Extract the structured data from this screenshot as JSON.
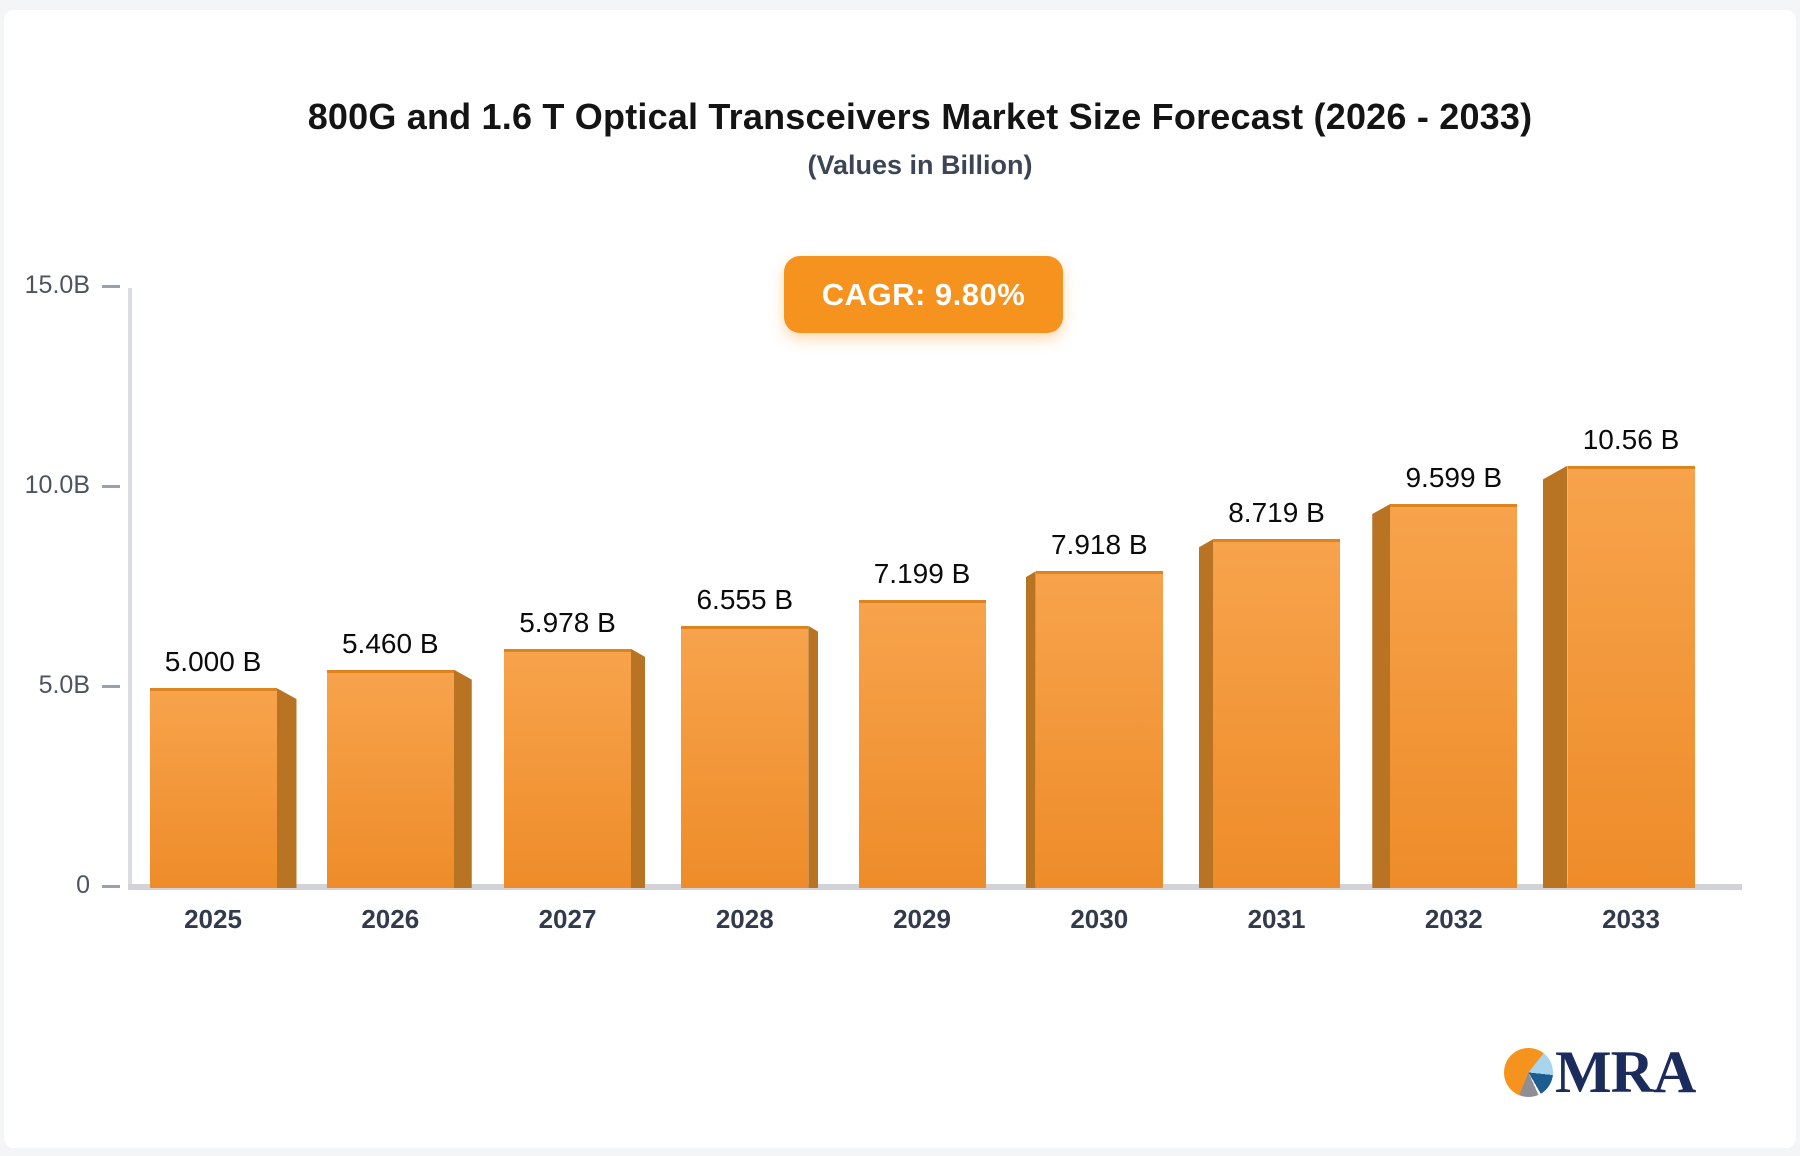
{
  "page": {
    "background": "#f4f5f7",
    "card_background": "#ffffff",
    "accent_orange": "#f6921e",
    "axis_color": "#d2d3d9",
    "text_dark": "#141414"
  },
  "header": {
    "title": "800G and 1.6 T Optical Transceivers Market Size Forecast (2026 - 2033)",
    "subtitle": "(Values in Billion)"
  },
  "badge": {
    "label": "CAGR: 9.80%",
    "background": "#f6921e",
    "text_color": "#ffffff"
  },
  "chart_data": {
    "type": "bar",
    "title": "800G and 1.6 T Optical Transceivers Market Size Forecast (2026 - 2033)",
    "subtitle": "(Values in Billion)",
    "annotation": "CAGR: 9.80%",
    "categories": [
      "2025",
      "2026",
      "2027",
      "2028",
      "2029",
      "2030",
      "2031",
      "2032",
      "2033"
    ],
    "values": [
      5.0,
      5.46,
      5.978,
      6.555,
      7.199,
      7.918,
      8.719,
      9.599,
      10.56
    ],
    "value_labels": [
      "5.000 B",
      "5.460 B",
      "5.978 B",
      "6.555 B",
      "7.199 B",
      "7.918 B",
      "8.719 B",
      "9.599 B",
      "10.56 B"
    ],
    "xlabel": "",
    "ylabel": "",
    "ylim": [
      0,
      15
    ],
    "y_ticks": [
      {
        "label": "15.0B",
        "value": 15
      },
      {
        "label": "10.0B",
        "value": 10
      },
      {
        "label": "5.0B",
        "value": 5
      },
      {
        "label": "0",
        "value": 0
      }
    ],
    "grid": false,
    "legend_position": "none",
    "bar_colors": {
      "front_top": "#f7a34c",
      "front_bottom": "#ee8c29",
      "side": "#b97423",
      "top_edge": "#dd8420"
    }
  },
  "logo": {
    "text": "MRA",
    "pie_colors": [
      "#f6921e",
      "#a8d4ee",
      "#1d5c8f",
      "#8e8e94"
    ]
  }
}
